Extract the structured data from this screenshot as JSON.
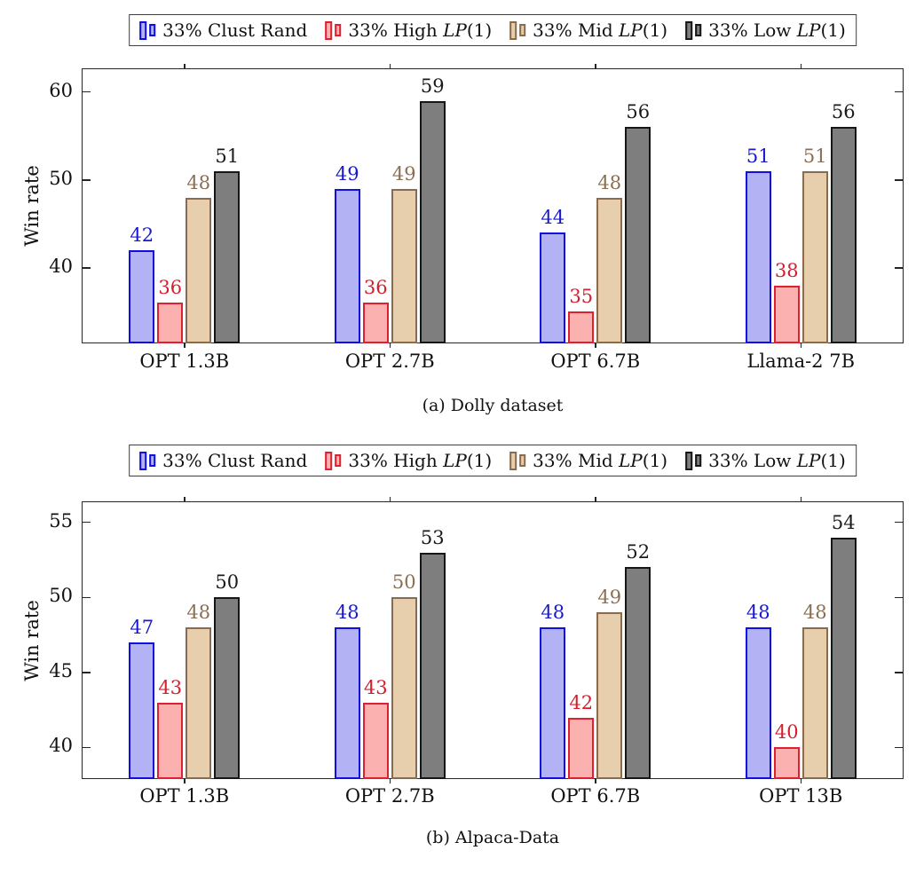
{
  "figure": {
    "background": "#ffffff",
    "text_color": "#111111",
    "frame_color": "#252525"
  },
  "legend": {
    "border_color": "#3f3f3f",
    "position": "top-center",
    "entries": [
      {
        "label": "33% Clust Rand",
        "prefix": "33% Clust Rand",
        "math": "",
        "suffix": ""
      },
      {
        "label": "33% High ℒ𝒫(1)",
        "prefix": "33% High ",
        "math": "LP",
        "suffix": "(1)"
      },
      {
        "label": "33% Mid ℒ𝒫(1)",
        "prefix": "33% Mid ",
        "math": "LP",
        "suffix": "(1)"
      },
      {
        "label": "33% Low ℒ𝒫(1)",
        "prefix": "33% Low ",
        "math": "LP",
        "suffix": "(1)"
      }
    ]
  },
  "series_colors": [
    {
      "name": "33% Clust Rand",
      "fill": "#b2b2f5",
      "stroke": "#0f0fe0",
      "label_color": "#1818d0"
    },
    {
      "name": "33% High ℒ𝒫(1)",
      "fill": "#fcb1b1",
      "stroke": "#e0202e",
      "label_color": "#d41e2c"
    },
    {
      "name": "33% Mid ℒ𝒫(1)",
      "fill": "#e7cfad",
      "stroke": "#8b6b4b",
      "label_color": "#8a6f52"
    },
    {
      "name": "33% Low ℒ𝒫(1)",
      "fill": "#7e7e7e",
      "stroke": "#161616",
      "label_color": "#1a1a1a"
    }
  ],
  "chart_data": [
    {
      "type": "bar",
      "caption": "(a) Dolly dataset",
      "ylabel": "Win rate",
      "xlabel": "",
      "categories": [
        "OPT 1.3B",
        "OPT 2.7B",
        "OPT 6.7B",
        "Llama-2 7B"
      ],
      "series": [
        {
          "name": "33% Clust Rand",
          "values": [
            42,
            49,
            44,
            51
          ]
        },
        {
          "name": "33% High ℒ𝒫(1)",
          "values": [
            36,
            36,
            35,
            38
          ]
        },
        {
          "name": "33% Mid ℒ𝒫(1)",
          "values": [
            48,
            49,
            48,
            51
          ]
        },
        {
          "name": "33% Low ℒ𝒫(1)",
          "values": [
            51,
            59,
            56,
            56
          ]
        }
      ],
      "yticks": [
        40,
        50,
        60
      ],
      "ylim": [
        31.4,
        62.7
      ],
      "grid": false,
      "legend_position": "above"
    },
    {
      "type": "bar",
      "caption": "(b) Alpaca-Data",
      "ylabel": "Win rate",
      "xlabel": "",
      "categories": [
        "OPT 1.3B",
        "OPT 2.7B",
        "OPT 6.7B",
        "OPT 13B"
      ],
      "series": [
        {
          "name": "33% Clust Rand",
          "values": [
            47,
            48,
            48,
            48
          ]
        },
        {
          "name": "33% High ℒ𝒫(1)",
          "values": [
            43,
            43,
            42,
            40
          ]
        },
        {
          "name": "33% Mid ℒ𝒫(1)",
          "values": [
            48,
            50,
            49,
            48
          ]
        },
        {
          "name": "33% Low ℒ𝒫(1)",
          "values": [
            50,
            53,
            52,
            54
          ]
        }
      ],
      "yticks": [
        40,
        45,
        50,
        55
      ],
      "ylim": [
        37.9,
        56.4
      ],
      "grid": false,
      "legend_position": "above"
    }
  ]
}
